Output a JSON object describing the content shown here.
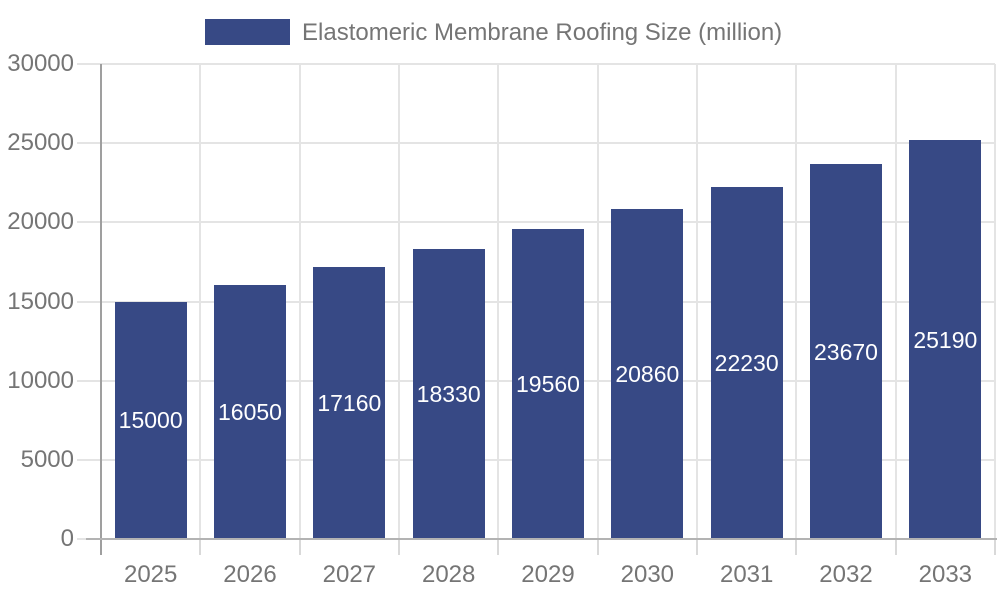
{
  "chart_data": {
    "type": "bar",
    "title": "Elastomeric Membrane Roofing Size (million)",
    "legend": {
      "label": "Elastomeric Membrane Roofing Size (million)",
      "position": "top"
    },
    "categories": [
      "2025",
      "2026",
      "2027",
      "2028",
      "2029",
      "2030",
      "2031",
      "2032",
      "2033"
    ],
    "values": [
      15000,
      16050,
      17160,
      18330,
      19560,
      20860,
      22230,
      23670,
      25190
    ],
    "xlabel": "",
    "ylabel": "",
    "ylim": [
      0,
      30000
    ],
    "yticks": [
      0,
      5000,
      10000,
      15000,
      20000,
      25000,
      30000
    ],
    "grid": true,
    "bar_value_labels_inside": true,
    "colors": {
      "bar": "#374985",
      "bar_label_text": "#ffffff",
      "axis_text": "#757575",
      "gridline": "#e4e4e4",
      "x_tick": "#d9d9d9",
      "y_axis_spine": "#9f9f9f",
      "x_axis_spine": "#b3b3b3",
      "background": "#ffffff"
    }
  }
}
